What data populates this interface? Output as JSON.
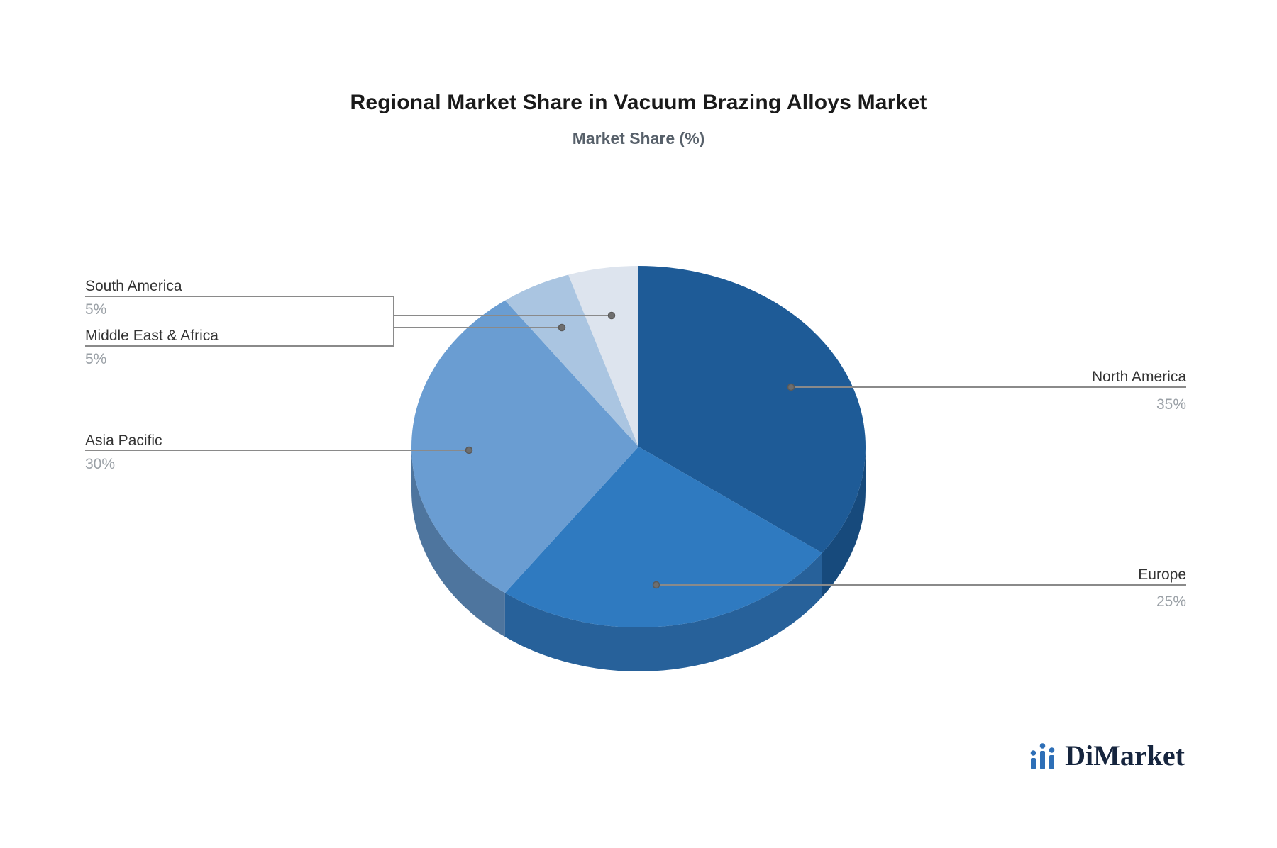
{
  "page": {
    "background": "#ffffff"
  },
  "header": {
    "title": "Regional Market Share in Vacuum Brazing Alloys Market",
    "subtitle": "Market Share (%)"
  },
  "chart_data": {
    "type": "pie",
    "style": "3d",
    "title": "Regional Market Share in Vacuum Brazing Alloys Market",
    "subtitle": "Market Share (%)",
    "unit": "%",
    "direction": "clockwise",
    "start_angle_deg": 0,
    "legend": "none",
    "label_format": "name above line, percent below line",
    "slices": [
      {
        "label": "North America",
        "value": 35,
        "display": "35%",
        "color": "#1e5b97",
        "side_color": "#174a7c"
      },
      {
        "label": "Europe",
        "value": 25,
        "display": "25%",
        "color": "#2f7ac0",
        "side_color": "#27619a"
      },
      {
        "label": "Asia Pacific",
        "value": 30,
        "display": "30%",
        "color": "#6a9dd2",
        "side_color": "#4e759e"
      },
      {
        "label": "Middle East & Africa",
        "value": 5,
        "display": "5%",
        "color": "#aac5e1",
        "side_color": "#8fb3d6"
      },
      {
        "label": "South America",
        "value": 5,
        "display": "5%",
        "color": "#dde4ee",
        "side_color": "#c2cfe0"
      }
    ]
  },
  "branding": {
    "logo_text": "DiMarket",
    "logo_color": "#2e6fb7",
    "logo_text_color": "#16253e"
  },
  "colors": {
    "connector": "#8a8a8a",
    "dot": "#6e6e6e",
    "label_text": "#333333",
    "percent_text": "#9aa0a6"
  }
}
